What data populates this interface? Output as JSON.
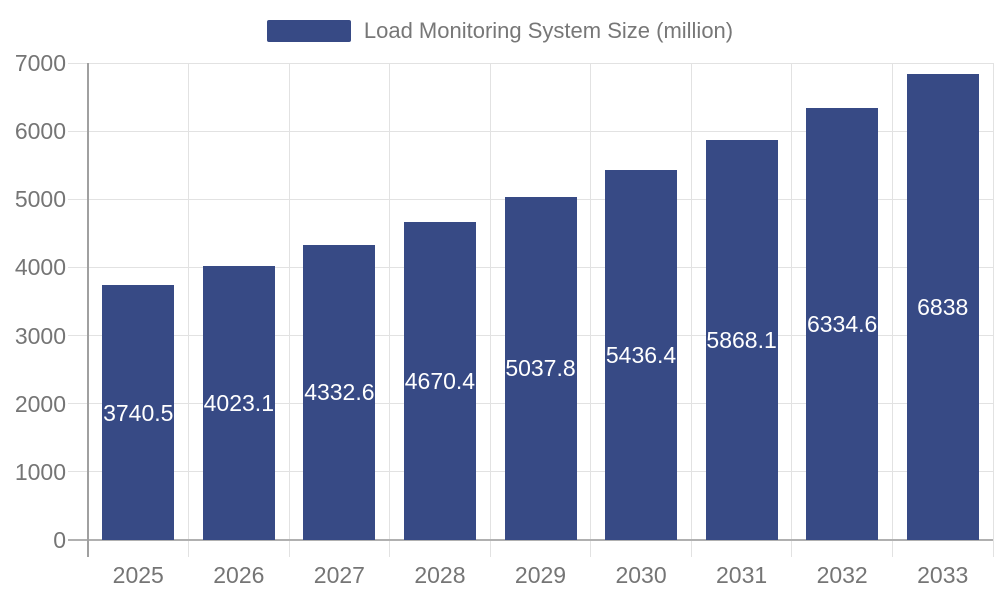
{
  "chart_data": {
    "type": "bar",
    "title": "Load Monitoring System Size (million)",
    "legend": {
      "label": "Load Monitoring System Size (million)",
      "position": "top-center"
    },
    "categories": [
      "2025",
      "2026",
      "2027",
      "2028",
      "2029",
      "2030",
      "2031",
      "2032",
      "2033"
    ],
    "series": [
      {
        "name": "Load Monitoring System Size (million)",
        "values": [
          3740.5,
          4023.1,
          4332.6,
          4670.4,
          5037.8,
          5436.4,
          5868.1,
          6334.6,
          6838
        ]
      }
    ],
    "value_labels": [
      "3740.5",
      "4023.1",
      "4332.6",
      "4670.4",
      "5037.8",
      "5436.4",
      "5868.1",
      "6334.6",
      "6838"
    ],
    "xlabel": "",
    "ylabel": "",
    "ylim": [
      0,
      7000
    ],
    "yticks": [
      0,
      1000,
      2000,
      3000,
      4000,
      5000,
      6000,
      7000
    ],
    "grid": true,
    "colors": {
      "bar": "#374A85",
      "grid": "#e2e2e2",
      "x_axis_line": "#b0b0b0",
      "y_axis_line": "#a0a0a0",
      "tick_text": "#757575",
      "legend_text": "#777777",
      "value_label_text": "#ffffff",
      "background": "#ffffff"
    }
  }
}
